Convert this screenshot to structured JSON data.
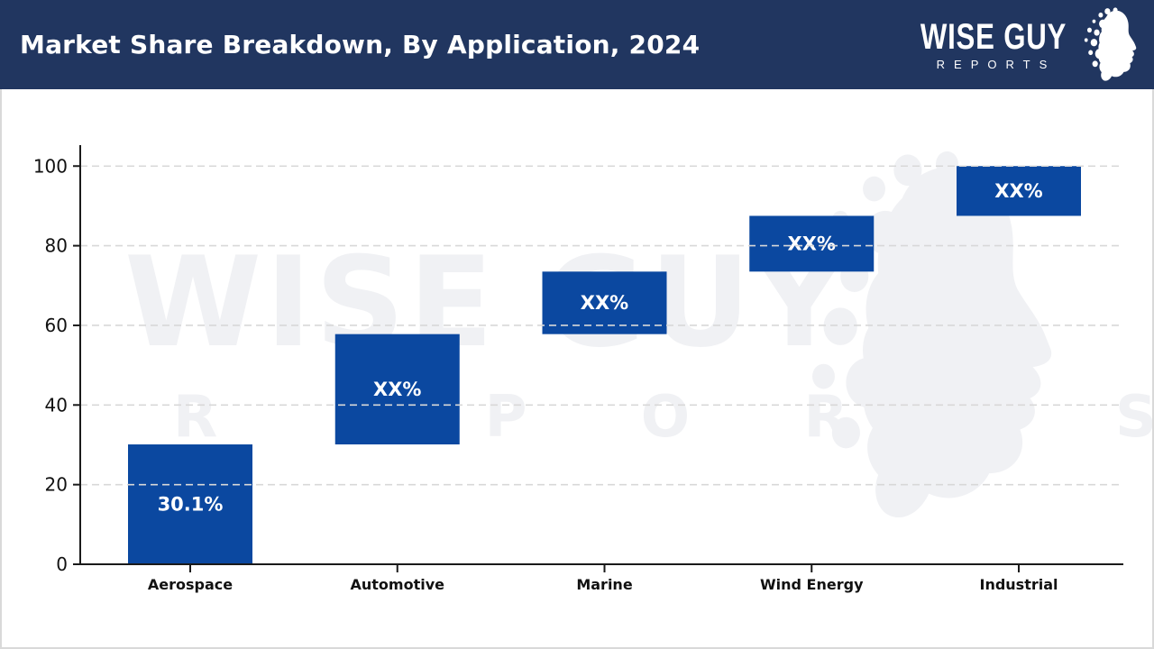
{
  "header": {
    "title": "Market Share Breakdown, By Application, 2024",
    "logo": {
      "wordmark": "WISE GUY",
      "subtitle": "REPORTS"
    },
    "bg_color": "#213660"
  },
  "watermark": {
    "line1": "WISE GUY",
    "line2": "R E P O R T S"
  },
  "chart_data": {
    "type": "bar",
    "variant": "floating-waterfall",
    "title": "Market Share Breakdown, By Application, 2024",
    "categories": [
      "Aerospace",
      "Automotive",
      "Marine",
      "Wind Energy",
      "Industrial"
    ],
    "segments": [
      {
        "category": "Aerospace",
        "start": 0,
        "end": 30.1,
        "value": 30.1,
        "label": "30.1%"
      },
      {
        "category": "Automotive",
        "start": 30.1,
        "end": 57.8,
        "value": 27.7,
        "label": "XX%"
      },
      {
        "category": "Marine",
        "start": 57.8,
        "end": 73.5,
        "value": 15.7,
        "label": "XX%"
      },
      {
        "category": "Wind Energy",
        "start": 73.5,
        "end": 87.5,
        "value": 14.0,
        "label": "XX%"
      },
      {
        "category": "Industrial",
        "start": 87.5,
        "end": 100.0,
        "value": 12.5,
        "label": "XX%"
      }
    ],
    "xlabel": "",
    "ylabel": "",
    "yticks": [
      0,
      20,
      40,
      60,
      80,
      100
    ],
    "ylim": [
      0,
      105
    ],
    "grid": true,
    "grid_style": "dashed",
    "legend": false,
    "bar_color": "#0b48a0",
    "bar_label_color": "#ffffff",
    "grid_color": "#d8d8d8",
    "axis_color": "#1a1a1a"
  },
  "colors": {
    "header_bg": "#213660",
    "watermark": "#f0f1f4",
    "page_bg": "#ffffff",
    "border": "#d9d9d9"
  }
}
